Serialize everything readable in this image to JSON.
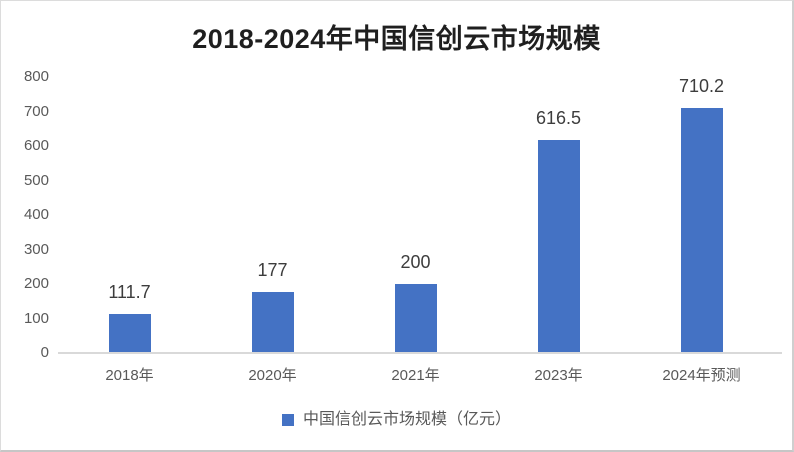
{
  "page": {
    "background_color": "#ffffff",
    "border_color": "#d9d9d9"
  },
  "chart_data": {
    "type": "bar",
    "title": "2018-2024年中国信创云市场规模",
    "categories": [
      "2018年",
      "2020年",
      "2021年",
      "2023年",
      "2024年预测"
    ],
    "values": [
      111.7,
      177,
      200,
      616.5,
      710.2
    ],
    "data_labels": [
      "111.7",
      "177",
      "200",
      "616.5",
      "710.2"
    ],
    "series_name": "中国信创云市场规模（亿元）",
    "xlabel": "",
    "ylabel": "",
    "ylim": [
      0,
      800
    ],
    "yticks": [
      0,
      100,
      200,
      300,
      400,
      500,
      600,
      700,
      800
    ],
    "grid": false,
    "bar_color": "#4472C4",
    "legend": {
      "label": "中国信创云市场规模（亿元）",
      "position": "bottom",
      "marker_color": "#4472C4"
    },
    "colors": {
      "title_text": "#1f1f1f",
      "axis_tick_text": "#595959",
      "data_label_text": "#3d3d3d",
      "axis_line": "#d9d9d9"
    }
  }
}
